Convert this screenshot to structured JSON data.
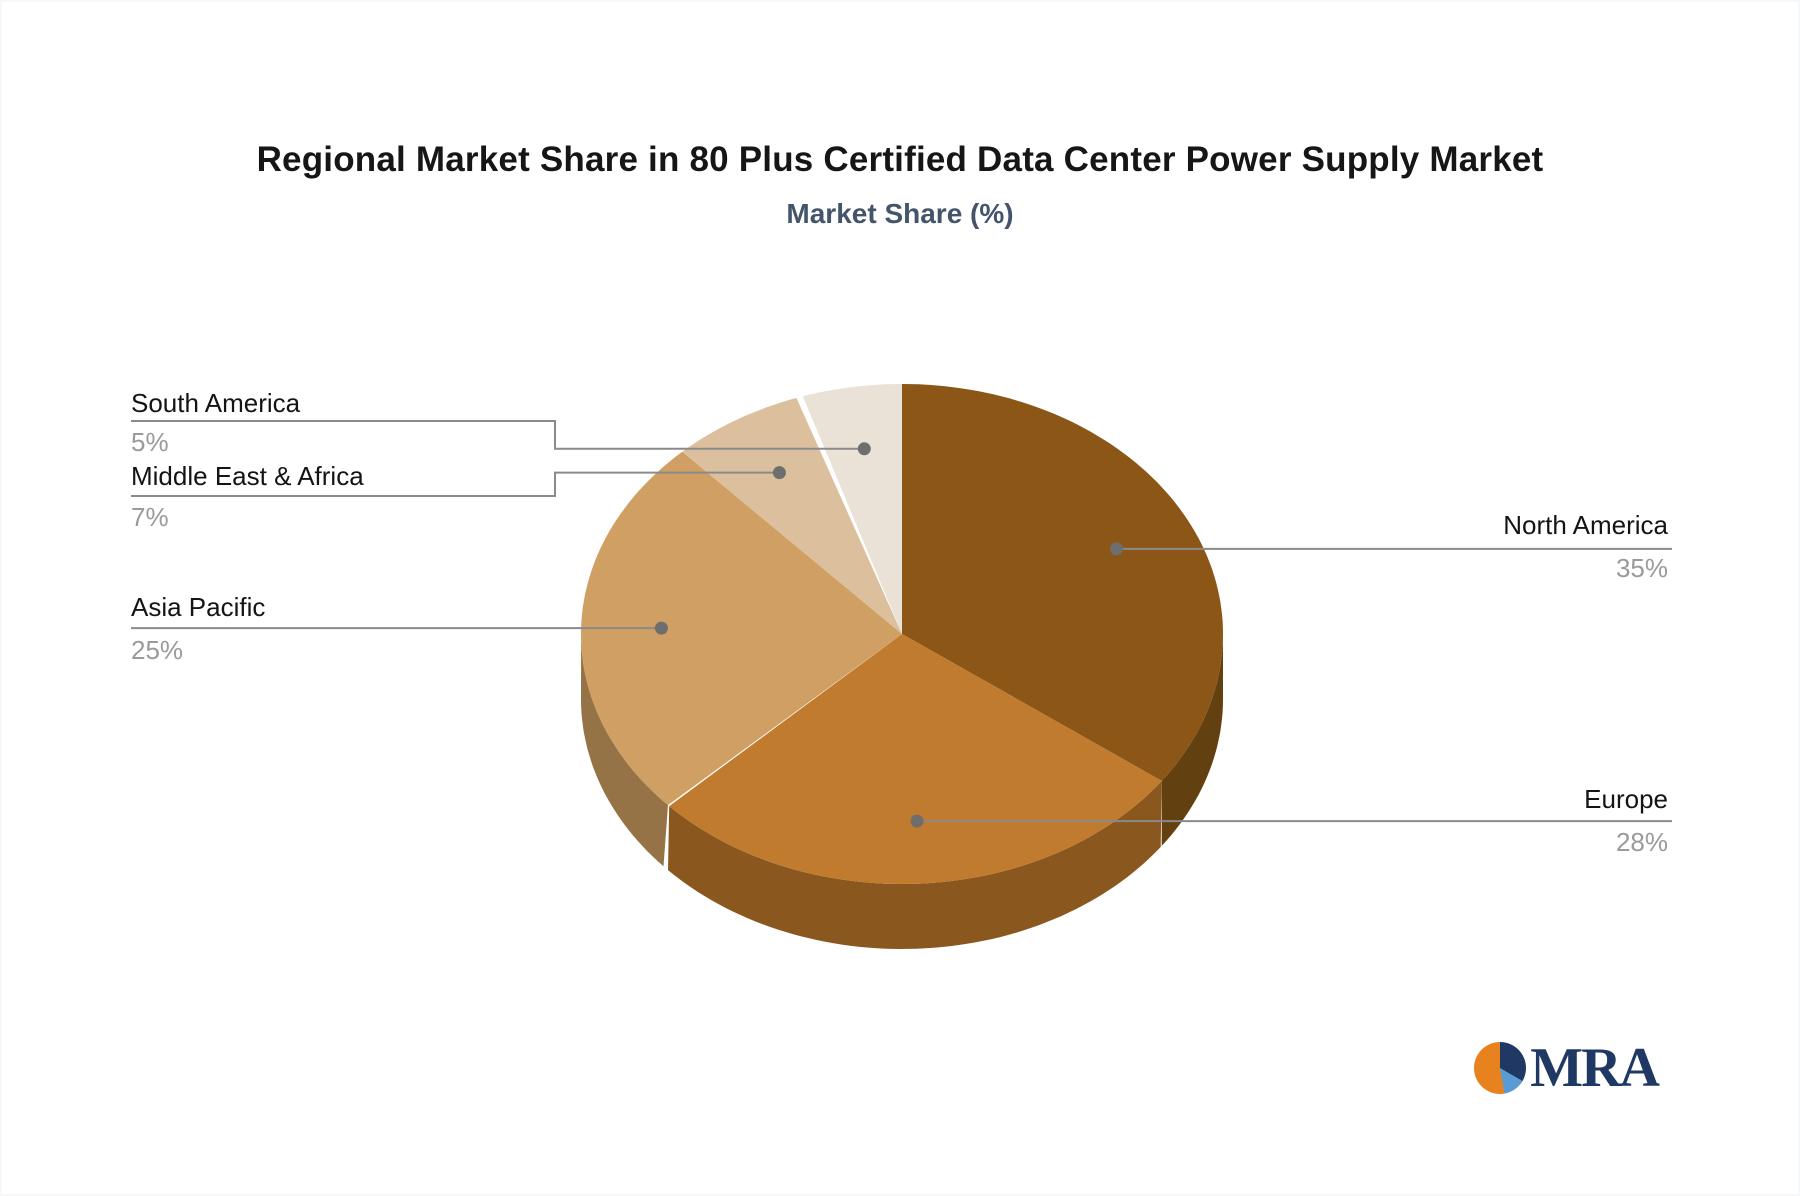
{
  "chart_data": {
    "type": "pie",
    "style": "3d",
    "title": "Regional Market Share in 80 Plus Certified Data Center Power Supply Market",
    "subtitle": "Market Share (%)",
    "unit": "%",
    "legend_position": "none",
    "categories": [
      "North America",
      "Europe",
      "Asia Pacific",
      "Middle East & Africa",
      "South America"
    ],
    "values": [
      35,
      28,
      25,
      7,
      5
    ],
    "slices": [
      {
        "name": "North America",
        "value": 35,
        "pct_label": "35%",
        "color": "#8B5616",
        "side_color": "#634010",
        "label_side": "right"
      },
      {
        "name": "Europe",
        "value": 28,
        "pct_label": "28%",
        "color": "#C17B2E",
        "side_color": "#8A571E",
        "label_side": "right"
      },
      {
        "name": "Asia Pacific",
        "value": 25,
        "pct_label": "25%",
        "color": "#D09F63",
        "side_color": "#967347",
        "label_side": "left"
      },
      {
        "name": "Middle East & Africa",
        "value": 7,
        "pct_label": "7%",
        "color": "#DCC09E",
        "side_color": "#9E8A71",
        "label_side": "left"
      },
      {
        "name": "South America",
        "value": 5,
        "pct_label": "5%",
        "color": "#EBE2D7",
        "side_color": "#A8A199",
        "label_side": "left"
      }
    ],
    "leader_line_color": "#8a8a8a",
    "leader_dot_color": "#6e6e6e",
    "title_color": "#161616",
    "subtitle_color": "#44546A",
    "pct_text_color": "#9a9a9a"
  },
  "logo": {
    "text": "MRA",
    "navy": "#1f3864",
    "orange": "#e8821e",
    "lightblue": "#5b9bd5"
  }
}
